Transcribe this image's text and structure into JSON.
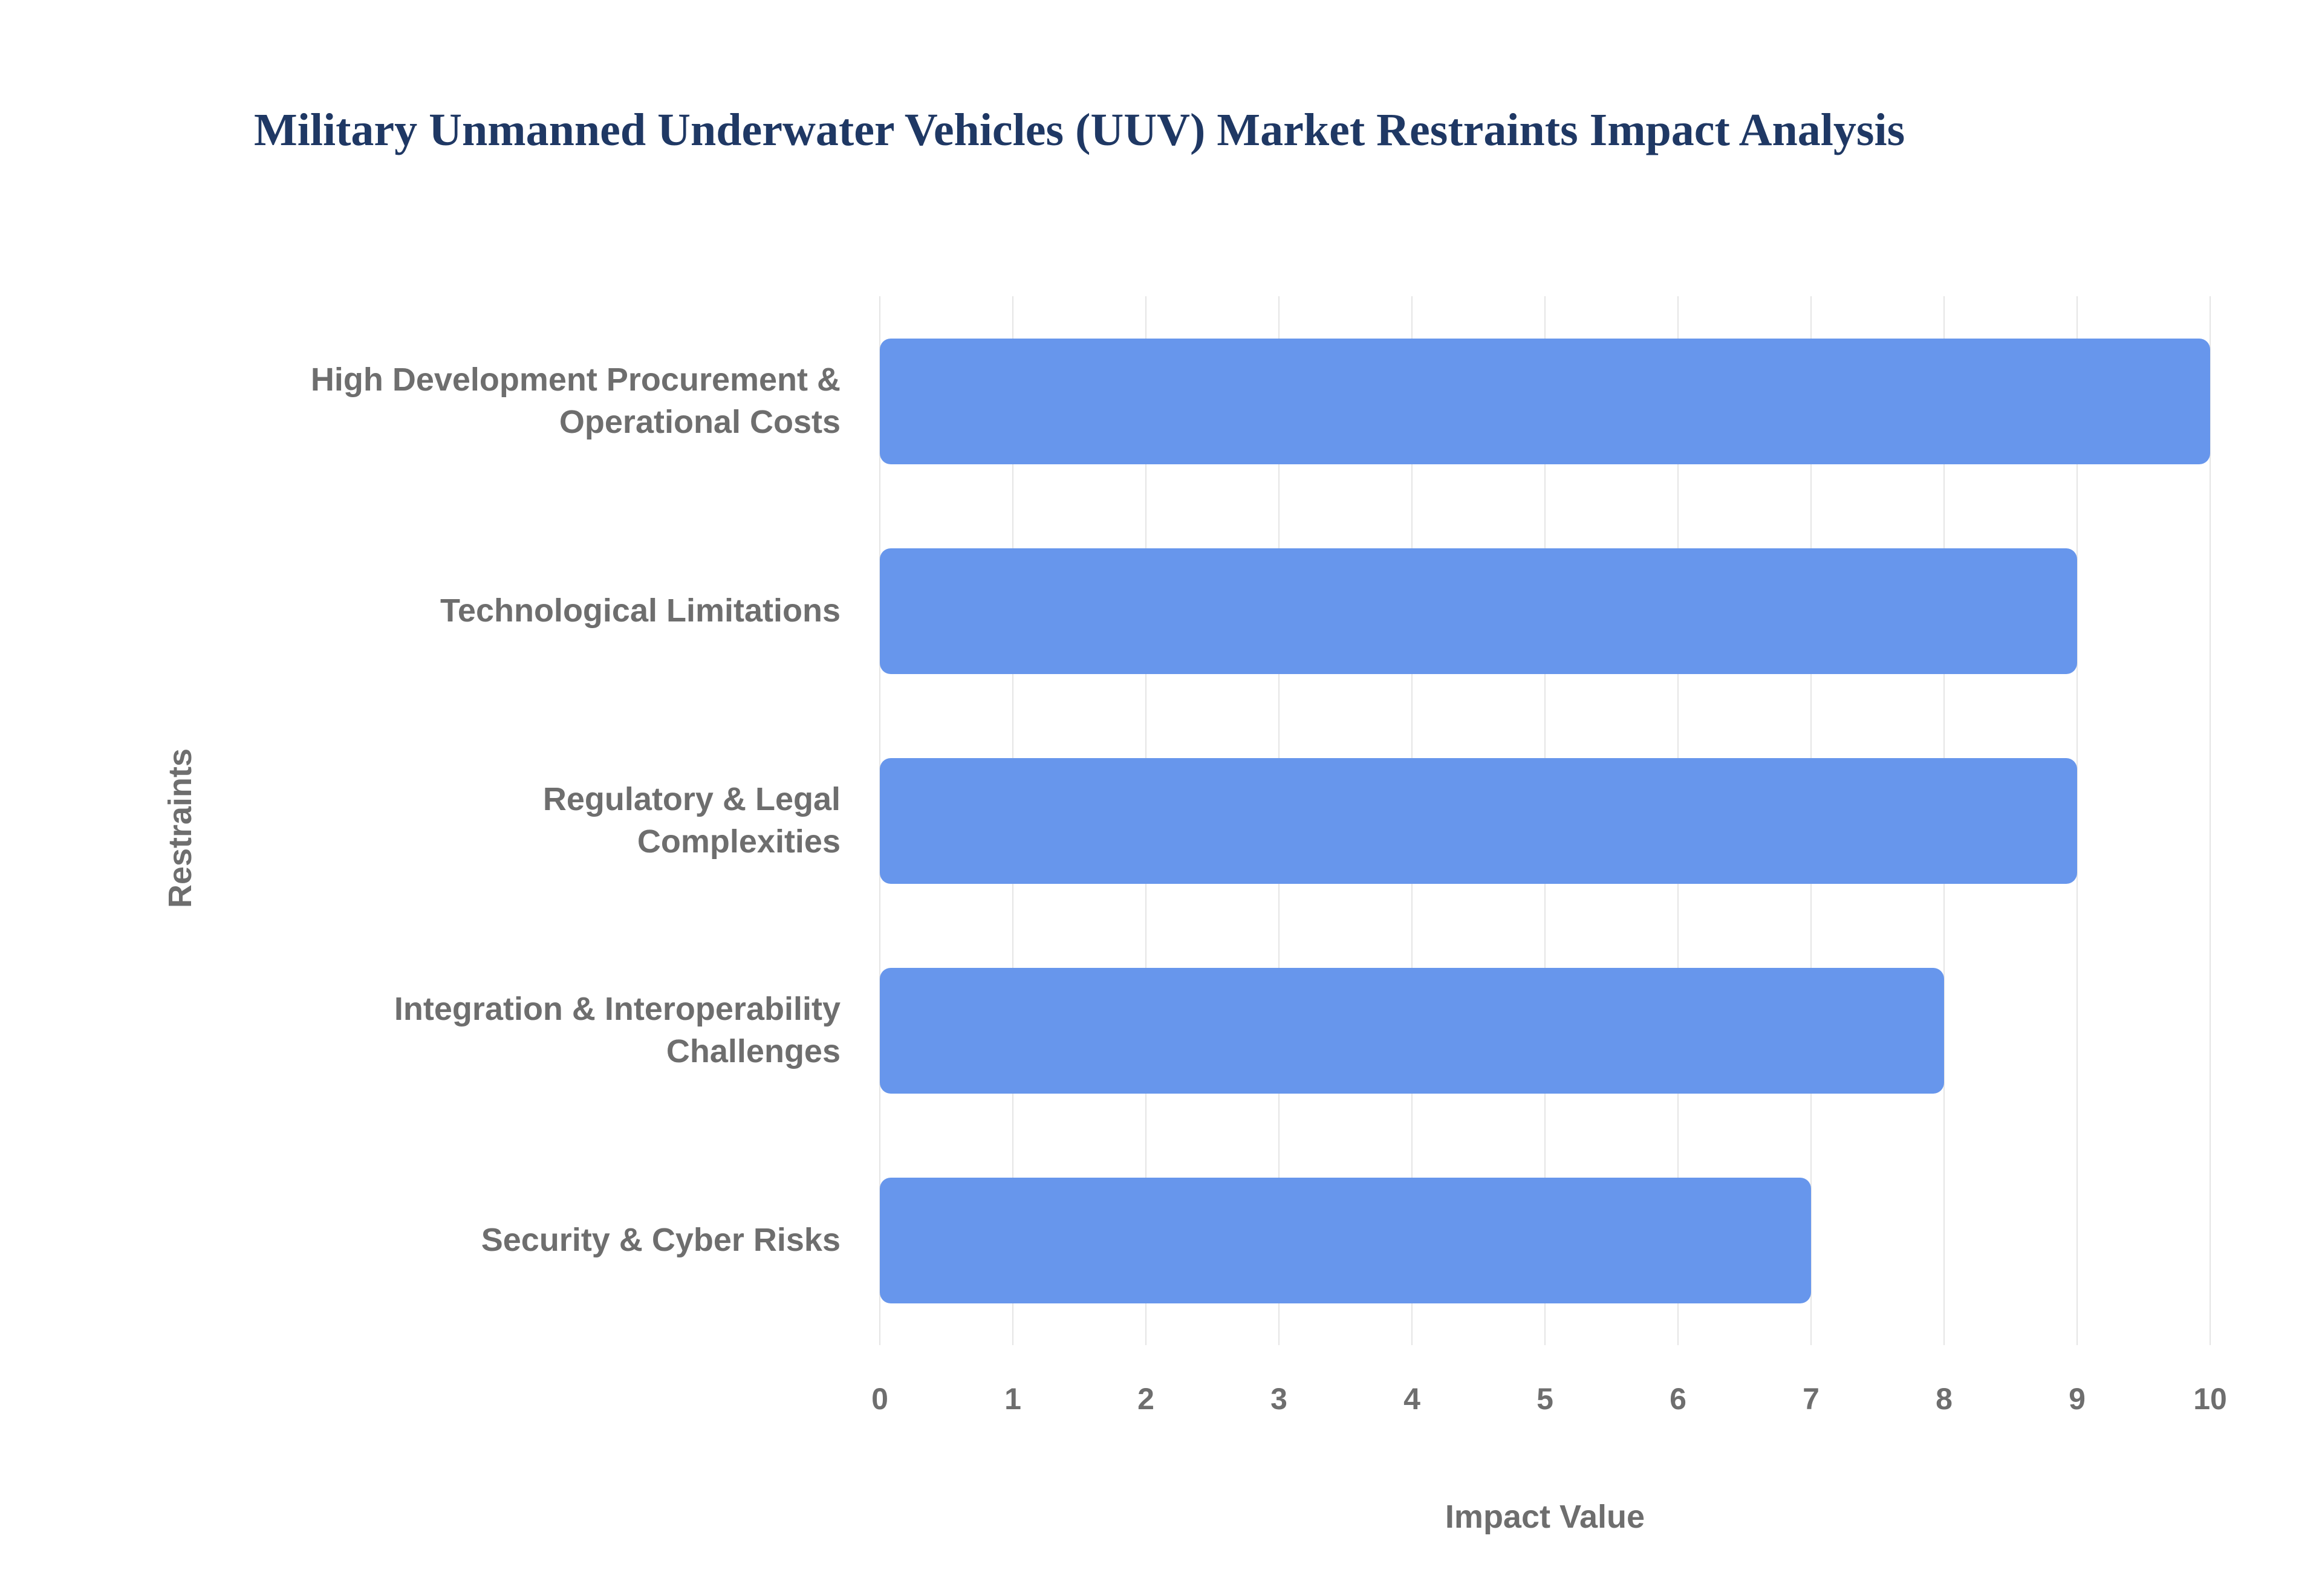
{
  "title": "Military Unmanned Underwater Vehicles (UUV) Market Restraints Impact Analysis",
  "chart_data": {
    "type": "bar",
    "orientation": "horizontal",
    "title": "Military Unmanned Underwater Vehicles (UUV) Market Restraints Impact Analysis",
    "xlabel": "Impact Value",
    "ylabel": "Restraints",
    "categories": [
      "High Development Procurement & Operational Costs",
      "Technological Limitations",
      "Regulatory & Legal Complexities",
      "Integration & Interoperability Challenges",
      "Security & Cyber Risks"
    ],
    "wrapped_labels": [
      "High Development Procurement &\nOperational Costs",
      "Technological Limitations",
      "Regulatory & Legal\nComplexities",
      "Integration & Interoperability\nChallenges",
      "Security & Cyber Risks"
    ],
    "values": [
      10,
      9,
      9,
      8,
      7
    ],
    "xlim": [
      0,
      10
    ],
    "xticks": [
      0,
      1,
      2,
      3,
      4,
      5,
      6,
      7,
      8,
      9,
      10
    ],
    "grid": true,
    "legend": false,
    "colors": {
      "bar": "#6796ec",
      "title": "#1f3864",
      "axis_text": "#6e6e6e",
      "gridline": "#e5e5e5"
    }
  }
}
